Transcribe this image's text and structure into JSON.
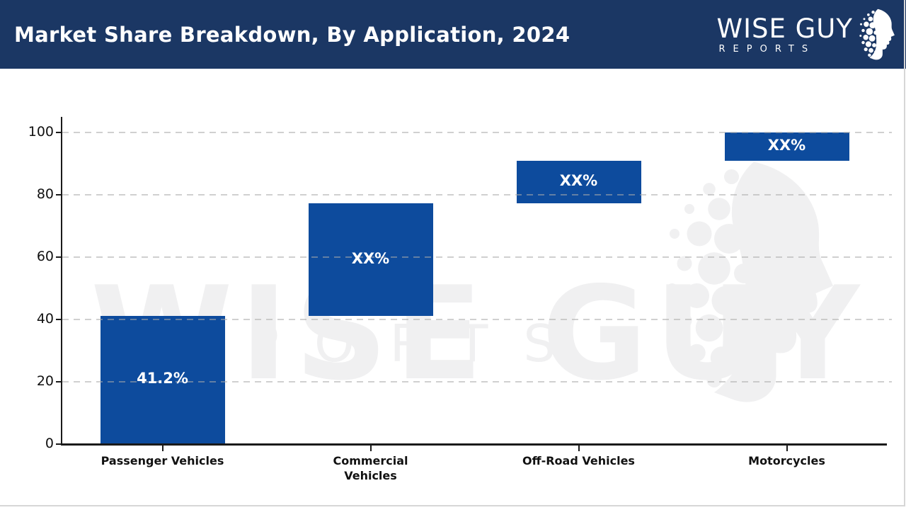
{
  "header": {
    "title": "Market Share Breakdown, By Application, 2024",
    "logo": {
      "line1": "WISE GUY",
      "line2": "REPORTS"
    }
  },
  "watermark": {
    "line1": "WISE GUY",
    "line2": "REPORTS"
  },
  "colors": {
    "header_bg": "#1b3764",
    "bar_blue": "#0d4b9d",
    "watermark_gray": "#f0f0f1",
    "axis_black": "#1a1a1a"
  },
  "chart_data": {
    "type": "bar",
    "subtype": "waterfall",
    "title": "Market Share Breakdown, By Application, 2024",
    "categories": [
      "Passenger Vehicles",
      "Commercial Vehicles",
      "Off-Road Vehicles",
      "Motorcycles"
    ],
    "series": [
      {
        "name": "Passenger Vehicles",
        "lines": [
          "Passenger Vehicles"
        ],
        "start": 0,
        "end": 41.2,
        "value": 41.2,
        "label": "41.2%"
      },
      {
        "name": "Commercial Vehicles",
        "lines": [
          "Commercial",
          "Vehicles"
        ],
        "start": 41.2,
        "end": 77.2,
        "value": 36.0,
        "label": "XX%"
      },
      {
        "name": "Off-Road Vehicles",
        "lines": [
          "Off-Road Vehicles"
        ],
        "start": 77.2,
        "end": 90.9,
        "value": 13.7,
        "label": "XX%"
      },
      {
        "name": "Motorcycles",
        "lines": [
          "Motorcycles"
        ],
        "start": 90.9,
        "end": 100,
        "value": 9.1,
        "label": "XX%"
      }
    ],
    "xlabel": "",
    "ylabel": "",
    "yticks": [
      0,
      20,
      40,
      60,
      80,
      100
    ],
    "ylim": [
      0,
      105
    ],
    "grid": "horizontal-dashed",
    "legend": "none",
    "bar_color": "#0d4b9d",
    "value_label_color": "#ffffff"
  }
}
